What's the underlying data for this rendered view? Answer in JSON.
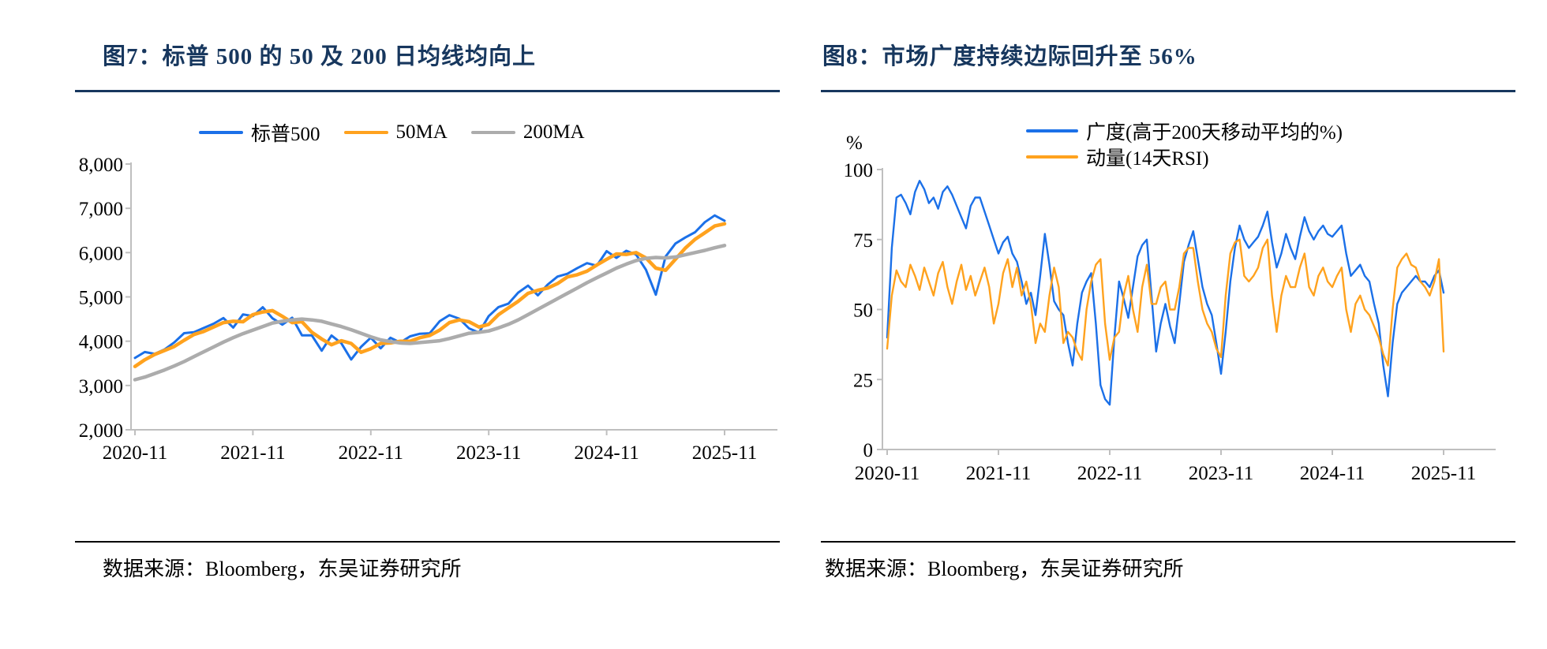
{
  "colors": {
    "title_navy": "#17375E",
    "axis_gray": "#BFBFBF",
    "blue": "#1B70E8",
    "orange": "#FFA21E",
    "gray": "#ACACAC",
    "text_black": "#000000"
  },
  "figure7": {
    "title": "图7：标普 500 的 50 及 200 日均线均向上",
    "source": "数据来源：Bloomberg，东吴证券研究所",
    "chart_data": {
      "type": "line",
      "title": "标普 500 的 50 及 200 日均线均向上",
      "x_start": "2020-11",
      "x_step_months": 1,
      "x_tick_labels": [
        "2020-11",
        "2021-11",
        "2022-11",
        "2023-11",
        "2024-11",
        "2025-11"
      ],
      "x_tick_months": [
        0,
        12,
        24,
        36,
        48,
        60
      ],
      "ylim": [
        2000,
        8000
      ],
      "y_ticks": [
        {
          "label": "8,000",
          "value": 8000
        },
        {
          "label": "7,000",
          "value": 7000
        },
        {
          "label": "6,000",
          "value": 6000
        },
        {
          "label": "5,000",
          "value": 5000
        },
        {
          "label": "4,000",
          "value": 4000
        },
        {
          "label": "3,000",
          "value": 3000
        },
        {
          "label": "2,000",
          "value": 2000
        }
      ],
      "legend_position": "top-center",
      "grid": false,
      "series": [
        {
          "name": "标普500",
          "color": "#1B70E8",
          "stroke_width": 3,
          "values": [
            3622,
            3756,
            3714,
            3811,
            3973,
            4181,
            4204,
            4298,
            4395,
            4523,
            4308,
            4605,
            4567,
            4766,
            4516,
            4374,
            4530,
            4132,
            4132,
            3785,
            4130,
            3955,
            3586,
            3872,
            4080,
            3840,
            4077,
            3970,
            4109,
            4169,
            4180,
            4450,
            4589,
            4508,
            4288,
            4194,
            4568,
            4770,
            4846,
            5096,
            5254,
            5036,
            5278,
            5460,
            5522,
            5648,
            5762,
            5705,
            6032,
            5882,
            6041,
            5955,
            5612,
            5050,
            5912,
            6205,
            6340,
            6460,
            6688,
            6840,
            6720
          ]
        },
        {
          "name": "50MA",
          "color": "#FFA21E",
          "stroke_width": 4.5,
          "values": [
            3430,
            3580,
            3700,
            3790,
            3880,
            4020,
            4150,
            4220,
            4320,
            4420,
            4450,
            4440,
            4600,
            4660,
            4690,
            4560,
            4420,
            4440,
            4200,
            4050,
            3920,
            4010,
            3950,
            3750,
            3830,
            3950,
            3960,
            4000,
            4000,
            4080,
            4130,
            4250,
            4420,
            4480,
            4440,
            4320,
            4380,
            4600,
            4750,
            4900,
            5080,
            5150,
            5200,
            5300,
            5450,
            5500,
            5580,
            5720,
            5850,
            5970,
            5960,
            6000,
            5880,
            5650,
            5600,
            5850,
            6100,
            6300,
            6450,
            6600,
            6650
          ]
        },
        {
          "name": "200MA",
          "color": "#ACACAC",
          "stroke_width": 4.5,
          "values": [
            3130,
            3190,
            3270,
            3350,
            3440,
            3540,
            3650,
            3760,
            3870,
            3980,
            4080,
            4170,
            4250,
            4330,
            4410,
            4450,
            4480,
            4500,
            4480,
            4450,
            4390,
            4330,
            4260,
            4180,
            4100,
            4030,
            3990,
            3960,
            3950,
            3970,
            3990,
            4010,
            4060,
            4120,
            4180,
            4200,
            4230,
            4300,
            4380,
            4480,
            4600,
            4720,
            4840,
            4960,
            5080,
            5200,
            5320,
            5430,
            5540,
            5650,
            5740,
            5820,
            5870,
            5890,
            5880,
            5900,
            5950,
            6000,
            6050,
            6110,
            6160
          ]
        }
      ]
    }
  },
  "figure8": {
    "title": "图8：市场广度持续边际回升至 56%",
    "source": "数据来源：Bloomberg，东吴证券研究所",
    "chart_data": {
      "type": "line",
      "title": "市场广度持续边际回升至 56%",
      "y_unit_label": "%",
      "x_start": "2020-11",
      "x_step_months": 0.5,
      "x_tick_labels": [
        "2020-11",
        "2021-11",
        "2022-11",
        "2023-11",
        "2024-11",
        "2025-11"
      ],
      "x_tick_months": [
        0,
        12,
        24,
        36,
        48,
        60
      ],
      "ylim": [
        0,
        100
      ],
      "y_ticks": [
        {
          "label": "100",
          "value": 100
        },
        {
          "label": "75",
          "value": 75
        },
        {
          "label": "50",
          "value": 50
        },
        {
          "label": "25",
          "value": 25
        },
        {
          "label": "0",
          "value": 0
        }
      ],
      "legend_position": "top-right-stacked",
      "grid": false,
      "series": [
        {
          "name": "广度(高于200天移动平均的%)",
          "color": "#1B70E8",
          "stroke_width": 2.4,
          "values": [
            40,
            72,
            90,
            91,
            88,
            84,
            92,
            96,
            93,
            88,
            90,
            86,
            92,
            94,
            91,
            87,
            83,
            79,
            87,
            90,
            90,
            85,
            80,
            75,
            70,
            74,
            76,
            70,
            67,
            60,
            52,
            56,
            48,
            62,
            77,
            66,
            53,
            50,
            48,
            38,
            30,
            45,
            56,
            60,
            63,
            45,
            23,
            18,
            16,
            40,
            60,
            54,
            47,
            58,
            69,
            73,
            75,
            55,
            35,
            45,
            52,
            44,
            38,
            52,
            67,
            73,
            78,
            68,
            58,
            52,
            48,
            38,
            27,
            42,
            60,
            72,
            80,
            75,
            72,
            74,
            76,
            80,
            85,
            74,
            65,
            70,
            77,
            72,
            68,
            76,
            83,
            78,
            75,
            78,
            80,
            77,
            76,
            78,
            80,
            70,
            62,
            64,
            66,
            62,
            60,
            52,
            45,
            30,
            19,
            38,
            52,
            56,
            58,
            60,
            62,
            60,
            60,
            58,
            62,
            64,
            56
          ]
        },
        {
          "name": "动量(14天RSI)",
          "color": "#FFA21E",
          "stroke_width": 2.4,
          "values": [
            36,
            55,
            64,
            60,
            58,
            66,
            62,
            57,
            65,
            60,
            55,
            63,
            67,
            58,
            52,
            60,
            66,
            57,
            62,
            55,
            60,
            65,
            58,
            45,
            52,
            63,
            68,
            58,
            65,
            55,
            60,
            52,
            38,
            45,
            42,
            55,
            65,
            58,
            38,
            42,
            40,
            35,
            32,
            50,
            60,
            66,
            68,
            45,
            32,
            40,
            42,
            55,
            62,
            50,
            42,
            58,
            66,
            52,
            52,
            58,
            60,
            50,
            50,
            58,
            70,
            72,
            72,
            60,
            50,
            45,
            42,
            36,
            33,
            55,
            70,
            74,
            75,
            62,
            60,
            62,
            65,
            72,
            75,
            55,
            42,
            55,
            62,
            58,
            58,
            65,
            70,
            58,
            55,
            62,
            65,
            60,
            58,
            62,
            65,
            50,
            42,
            52,
            55,
            50,
            48,
            44,
            40,
            34,
            30,
            50,
            65,
            68,
            70,
            66,
            65,
            60,
            58,
            55,
            60,
            68,
            35
          ]
        }
      ]
    }
  }
}
